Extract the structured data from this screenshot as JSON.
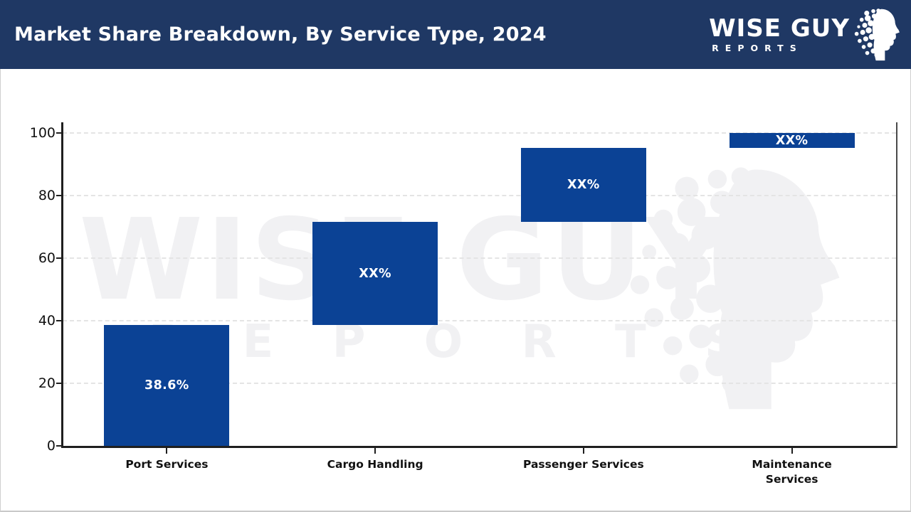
{
  "header": {
    "title": "Market Share Breakdown, By Service Type, 2024",
    "bg_color": "#1F3864",
    "logo_line1": "WISE GUY",
    "logo_line2": "REPORTS"
  },
  "watermark": {
    "line1": "WISE GUY",
    "line2": "R E P O R T S"
  },
  "chart_data": {
    "type": "bar",
    "subtype": "waterfall",
    "title": "Market Share Breakdown, By Service Type, 2024",
    "categories": [
      "Port Services",
      "Cargo Handling",
      "Passenger Services",
      "Maintenance\nServices"
    ],
    "segments": [
      {
        "category": "Port Services",
        "start": 0,
        "end": 38.6,
        "label": "38.6%"
      },
      {
        "category": "Cargo Handling",
        "start": 38.6,
        "end": 71.5,
        "label": "XX%"
      },
      {
        "category": "Passenger Services",
        "start": 71.5,
        "end": 95.2,
        "label": "XX%"
      },
      {
        "category": "Maintenance Services",
        "start": 95.2,
        "end": 100,
        "label": "XX%"
      }
    ],
    "y_ticks": [
      0,
      20,
      40,
      60,
      80,
      100
    ],
    "ylim": [
      0,
      103
    ],
    "xlabel": "",
    "ylabel": "",
    "grid": "horizontal-dashed",
    "legend": "none",
    "bar_color": "#0B4295",
    "bar_label_color": "#ffffff",
    "axis_color": "#1f1f1f",
    "gridline_color": "#e4e4e4"
  }
}
